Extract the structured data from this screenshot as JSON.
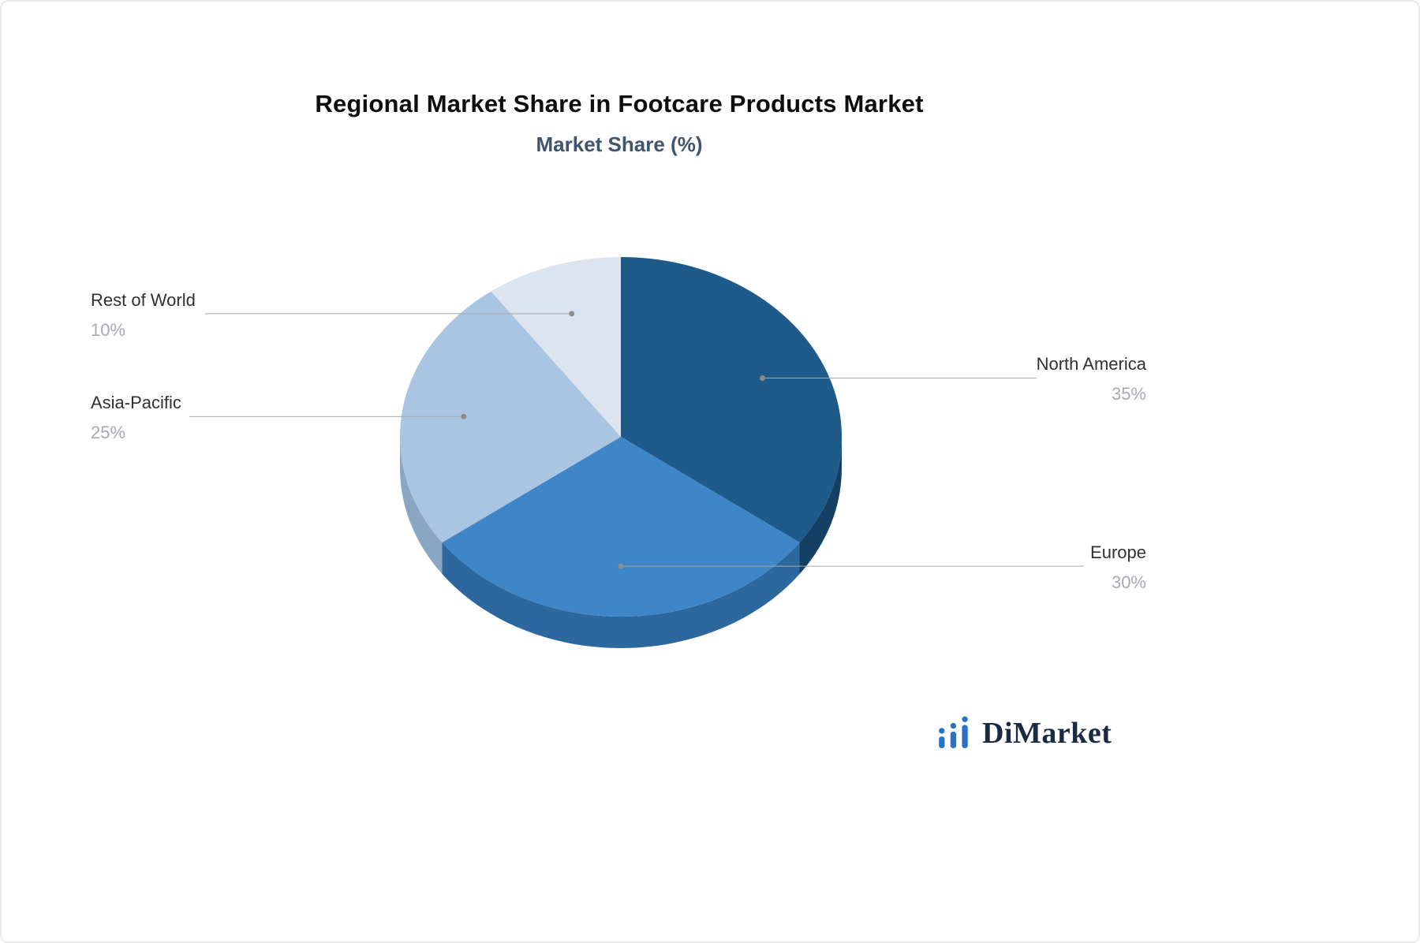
{
  "title": "Regional Market Share in Footcare Products Market",
  "subtitle": "Market Share (%)",
  "chart_data": {
    "type": "pie",
    "title": "Regional Market Share in Footcare Products Market",
    "subtitle": "Market Share (%)",
    "unit": "%",
    "style": "3d-pie",
    "direction": "clockwise",
    "start_angle_deg": 0,
    "legend_position": "none",
    "label_style": "leader-lines",
    "slices": [
      {
        "label": "North America",
        "value": 35,
        "pct_label": "35%",
        "color": "#1e5a8a",
        "side_color": "#153f63"
      },
      {
        "label": "Europe",
        "value": 30,
        "pct_label": "30%",
        "color": "#3e86c8",
        "side_color": "#2c679e"
      },
      {
        "label": "Asia-Pacific",
        "value": 25,
        "pct_label": "25%",
        "color": "#a9c5e2",
        "side_color": "#8ba6c3"
      },
      {
        "label": "Rest of World",
        "value": 10,
        "pct_label": "10%",
        "color": "#dce4ef",
        "side_color": "#c3cdda"
      }
    ]
  },
  "colors": {
    "leader_line": "#a9a9a9",
    "leader_dot": "#8c8c8c",
    "title_text": "#0d0d0d",
    "subtitle_text": "#41546b",
    "label_name_text": "#303030",
    "label_pct_text": "#a6aab0"
  },
  "branding": {
    "logo_text": "DiMarket",
    "logo_icon": "bar-chart-icon",
    "accent_color": "#2b72c4",
    "text_color": "#1b2a44"
  }
}
